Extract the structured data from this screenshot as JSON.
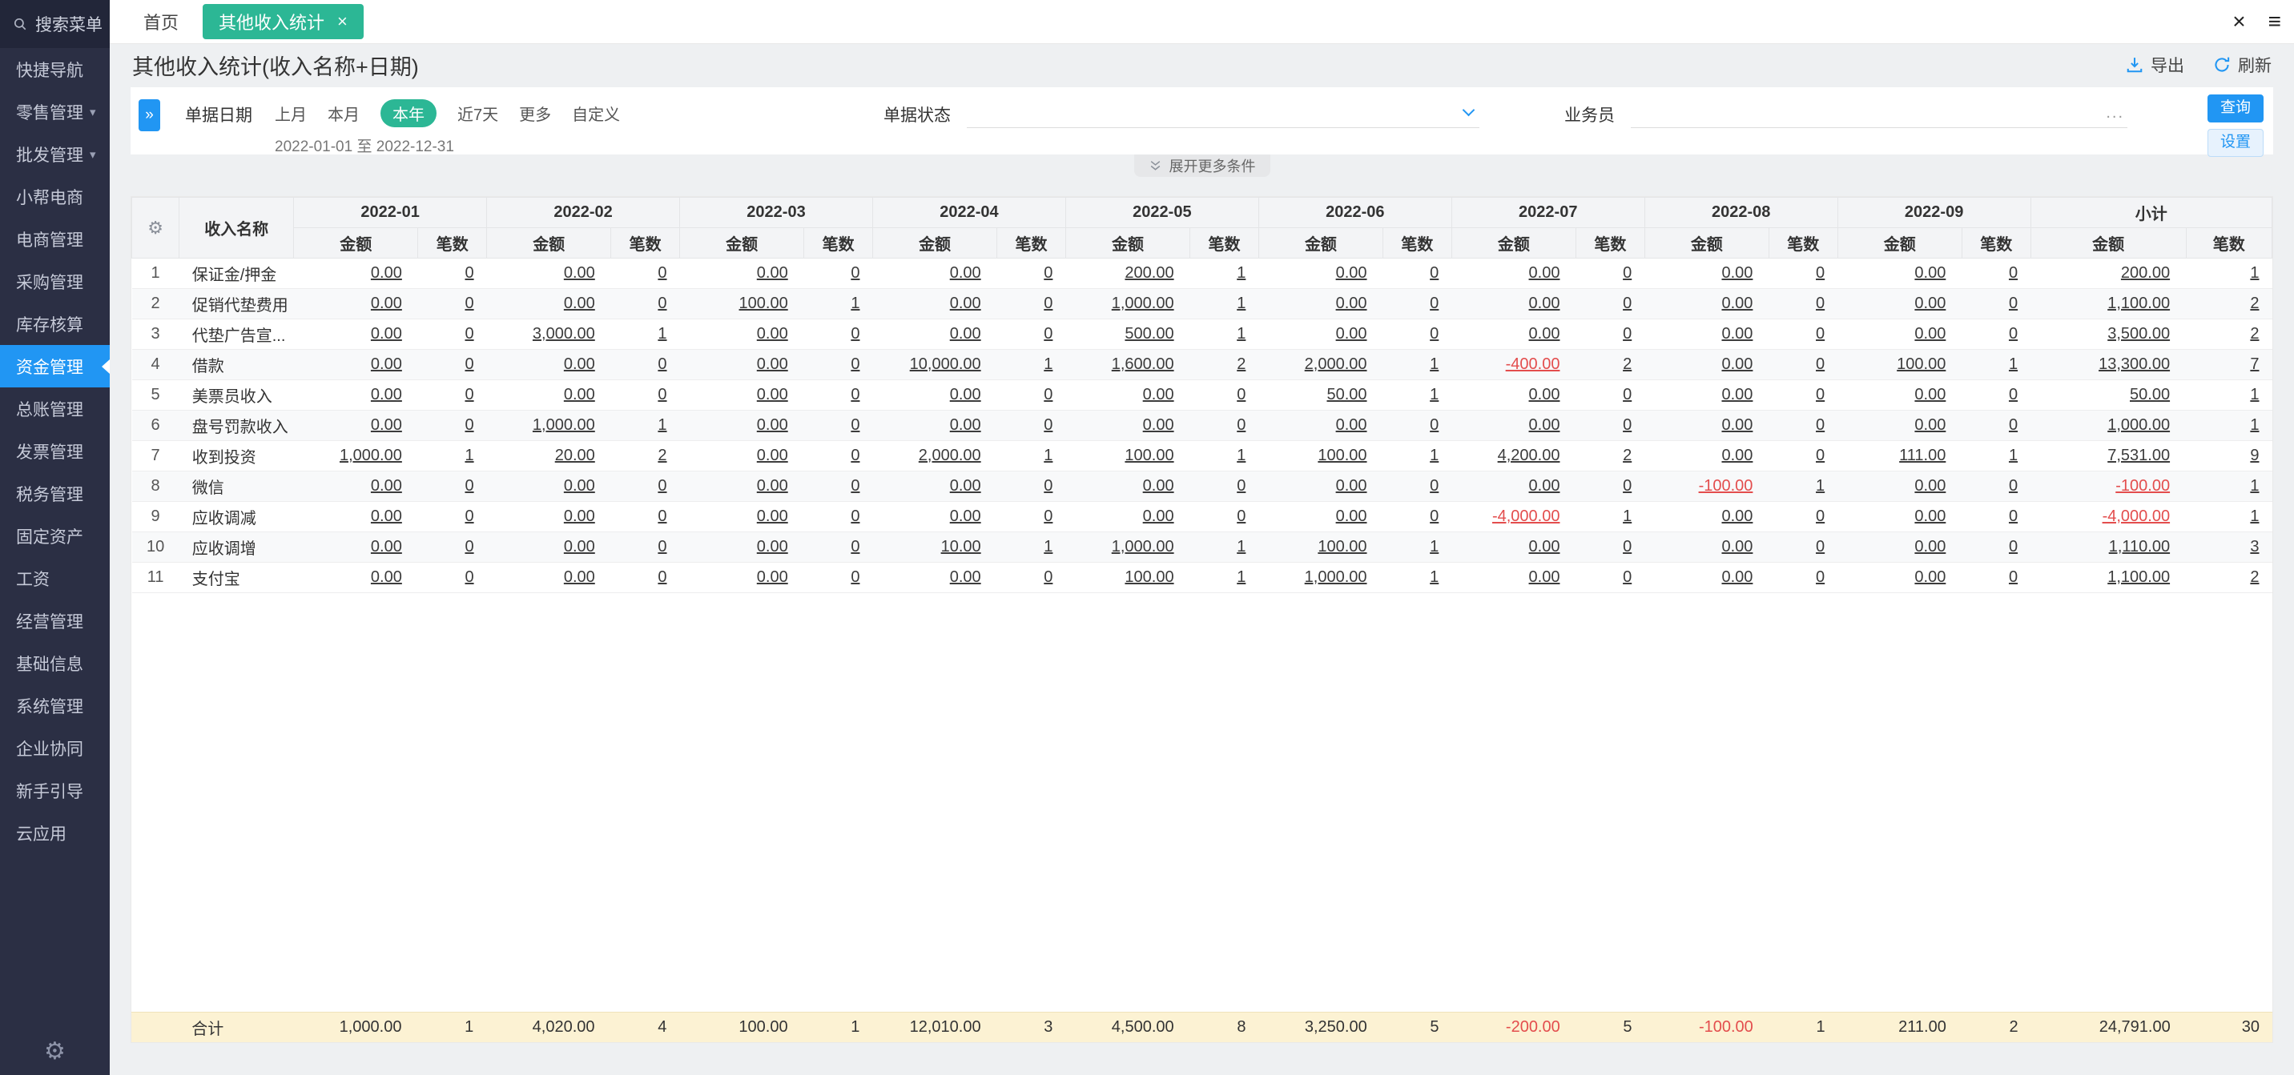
{
  "colors": {
    "accent": "#2196f3",
    "green": "#2cb795",
    "neg": "#e34d4d",
    "total-bg": "#fcf2d3",
    "side-bg": "#2b2f44",
    "side-dark": "#222639"
  },
  "sidebar": {
    "search_label": "搜索菜单",
    "items": [
      {
        "label": "快捷导航"
      },
      {
        "label": "零售管理",
        "arrow": true
      },
      {
        "label": "批发管理",
        "arrow": true
      },
      {
        "label": "小帮电商"
      },
      {
        "label": "电商管理"
      },
      {
        "label": "采购管理"
      },
      {
        "label": "库存核算"
      },
      {
        "label": "资金管理",
        "active": true
      },
      {
        "label": "总账管理"
      },
      {
        "label": "发票管理"
      },
      {
        "label": "税务管理"
      },
      {
        "label": "固定资产"
      },
      {
        "label": "工资"
      },
      {
        "label": "经营管理"
      },
      {
        "label": "基础信息"
      },
      {
        "label": "系统管理"
      },
      {
        "label": "企业协同"
      },
      {
        "label": "新手引导"
      },
      {
        "label": "云应用"
      }
    ]
  },
  "tabs": {
    "home": "首页",
    "active": "其他收入统计",
    "close": "×",
    "window_close": "×",
    "window_menu": "≡"
  },
  "header": {
    "title": "其他收入统计(收入名称+日期)",
    "export_label": "导出",
    "refresh_label": "刷新"
  },
  "filters": {
    "collapse_icon": "»",
    "date_label": "单据日期",
    "date_options": [
      "上月",
      "本月",
      "本年",
      "近7天",
      "更多",
      "自定义"
    ],
    "date_selected": "本年",
    "date_range": "2022-01-01 至 2022-12-31",
    "status_label": "单据状态",
    "status_value": "",
    "salesman_label": "业务员",
    "salesman_more": "...",
    "query_label": "查询",
    "settings_label": "设置",
    "expand_label": "展开更多条件"
  },
  "table": {
    "name_header": "收入名称",
    "months": [
      "2022-01",
      "2022-02",
      "2022-03",
      "2022-04",
      "2022-05",
      "2022-06",
      "2022-07",
      "2022-08",
      "2022-09",
      "小计"
    ],
    "sub_headers": [
      "金额",
      "笔数"
    ],
    "rows": [
      {
        "no": 1,
        "name": "保证金/押金",
        "values": [
          [
            "0.00",
            "0"
          ],
          [
            "0.00",
            "0"
          ],
          [
            "0.00",
            "0"
          ],
          [
            "0.00",
            "0"
          ],
          [
            "200.00",
            "1"
          ],
          [
            "0.00",
            "0"
          ],
          [
            "0.00",
            "0"
          ],
          [
            "0.00",
            "0"
          ],
          [
            "0.00",
            "0"
          ],
          [
            "200.00",
            "1"
          ]
        ]
      },
      {
        "no": 2,
        "name": "促销代垫费用",
        "values": [
          [
            "0.00",
            "0"
          ],
          [
            "0.00",
            "0"
          ],
          [
            "100.00",
            "1"
          ],
          [
            "0.00",
            "0"
          ],
          [
            "1,000.00",
            "1"
          ],
          [
            "0.00",
            "0"
          ],
          [
            "0.00",
            "0"
          ],
          [
            "0.00",
            "0"
          ],
          [
            "0.00",
            "0"
          ],
          [
            "1,100.00",
            "2"
          ]
        ]
      },
      {
        "no": 3,
        "name": "代垫广告宣...",
        "values": [
          [
            "0.00",
            "0"
          ],
          [
            "3,000.00",
            "1"
          ],
          [
            "0.00",
            "0"
          ],
          [
            "0.00",
            "0"
          ],
          [
            "500.00",
            "1"
          ],
          [
            "0.00",
            "0"
          ],
          [
            "0.00",
            "0"
          ],
          [
            "0.00",
            "0"
          ],
          [
            "0.00",
            "0"
          ],
          [
            "3,500.00",
            "2"
          ]
        ]
      },
      {
        "no": 4,
        "name": "借款",
        "values": [
          [
            "0.00",
            "0"
          ],
          [
            "0.00",
            "0"
          ],
          [
            "0.00",
            "0"
          ],
          [
            "10,000.00",
            "1"
          ],
          [
            "1,600.00",
            "2"
          ],
          [
            "2,000.00",
            "1"
          ],
          [
            "-400.00",
            "2"
          ],
          [
            "0.00",
            "0"
          ],
          [
            "100.00",
            "1"
          ],
          [
            "13,300.00",
            "7"
          ]
        ]
      },
      {
        "no": 5,
        "name": "美票员收入",
        "values": [
          [
            "0.00",
            "0"
          ],
          [
            "0.00",
            "0"
          ],
          [
            "0.00",
            "0"
          ],
          [
            "0.00",
            "0"
          ],
          [
            "0.00",
            "0"
          ],
          [
            "50.00",
            "1"
          ],
          [
            "0.00",
            "0"
          ],
          [
            "0.00",
            "0"
          ],
          [
            "0.00",
            "0"
          ],
          [
            "50.00",
            "1"
          ]
        ]
      },
      {
        "no": 6,
        "name": "盘号罚款收入",
        "values": [
          [
            "0.00",
            "0"
          ],
          [
            "1,000.00",
            "1"
          ],
          [
            "0.00",
            "0"
          ],
          [
            "0.00",
            "0"
          ],
          [
            "0.00",
            "0"
          ],
          [
            "0.00",
            "0"
          ],
          [
            "0.00",
            "0"
          ],
          [
            "0.00",
            "0"
          ],
          [
            "0.00",
            "0"
          ],
          [
            "1,000.00",
            "1"
          ]
        ]
      },
      {
        "no": 7,
        "name": "收到投资",
        "values": [
          [
            "1,000.00",
            "1"
          ],
          [
            "20.00",
            "2"
          ],
          [
            "0.00",
            "0"
          ],
          [
            "2,000.00",
            "1"
          ],
          [
            "100.00",
            "1"
          ],
          [
            "100.00",
            "1"
          ],
          [
            "4,200.00",
            "2"
          ],
          [
            "0.00",
            "0"
          ],
          [
            "111.00",
            "1"
          ],
          [
            "7,531.00",
            "9"
          ]
        ]
      },
      {
        "no": 8,
        "name": "微信",
        "values": [
          [
            "0.00",
            "0"
          ],
          [
            "0.00",
            "0"
          ],
          [
            "0.00",
            "0"
          ],
          [
            "0.00",
            "0"
          ],
          [
            "0.00",
            "0"
          ],
          [
            "0.00",
            "0"
          ],
          [
            "0.00",
            "0"
          ],
          [
            "-100.00",
            "1"
          ],
          [
            "0.00",
            "0"
          ],
          [
            "-100.00",
            "1"
          ]
        ]
      },
      {
        "no": 9,
        "name": "应收调减",
        "values": [
          [
            "0.00",
            "0"
          ],
          [
            "0.00",
            "0"
          ],
          [
            "0.00",
            "0"
          ],
          [
            "0.00",
            "0"
          ],
          [
            "0.00",
            "0"
          ],
          [
            "0.00",
            "0"
          ],
          [
            "-4,000.00",
            "1"
          ],
          [
            "0.00",
            "0"
          ],
          [
            "0.00",
            "0"
          ],
          [
            "-4,000.00",
            "1"
          ]
        ]
      },
      {
        "no": 10,
        "name": "应收调增",
        "values": [
          [
            "0.00",
            "0"
          ],
          [
            "0.00",
            "0"
          ],
          [
            "0.00",
            "0"
          ],
          [
            "10.00",
            "1"
          ],
          [
            "1,000.00",
            "1"
          ],
          [
            "100.00",
            "1"
          ],
          [
            "0.00",
            "0"
          ],
          [
            "0.00",
            "0"
          ],
          [
            "0.00",
            "0"
          ],
          [
            "1,110.00",
            "3"
          ]
        ]
      },
      {
        "no": 11,
        "name": "支付宝",
        "values": [
          [
            "0.00",
            "0"
          ],
          [
            "0.00",
            "0"
          ],
          [
            "0.00",
            "0"
          ],
          [
            "0.00",
            "0"
          ],
          [
            "100.00",
            "1"
          ],
          [
            "1,000.00",
            "1"
          ],
          [
            "0.00",
            "0"
          ],
          [
            "0.00",
            "0"
          ],
          [
            "0.00",
            "0"
          ],
          [
            "1,100.00",
            "2"
          ]
        ]
      }
    ],
    "total": {
      "label": "合计",
      "values": [
        [
          "1,000.00",
          "1"
        ],
        [
          "4,020.00",
          "4"
        ],
        [
          "100.00",
          "1"
        ],
        [
          "12,010.00",
          "3"
        ],
        [
          "4,500.00",
          "8"
        ],
        [
          "3,250.00",
          "5"
        ],
        [
          "-200.00",
          "5"
        ],
        [
          "-100.00",
          "1"
        ],
        [
          "211.00",
          "2"
        ],
        [
          "24,791.00",
          "30"
        ]
      ]
    }
  }
}
